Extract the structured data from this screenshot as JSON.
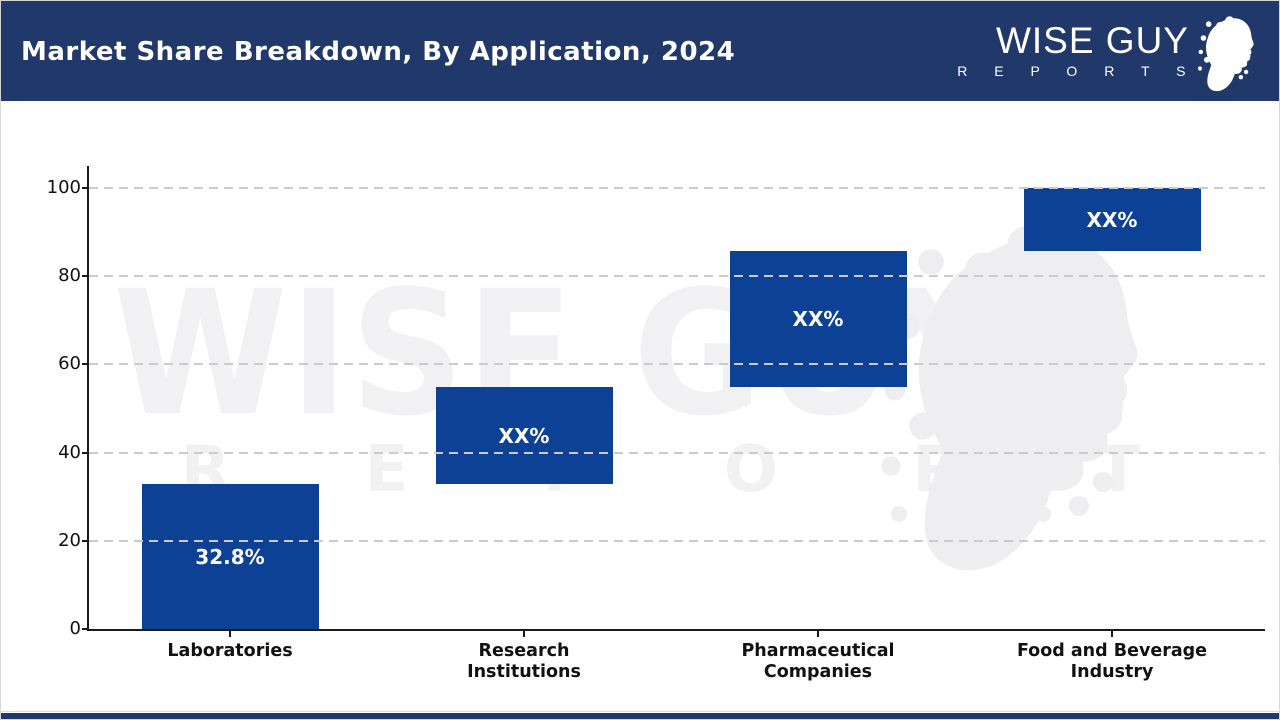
{
  "header": {
    "title": "Market Share Breakdown, By Application, 2024",
    "logo": {
      "line1": "WISE GUY",
      "line2": "R E P O R T S"
    }
  },
  "watermark": {
    "line1": "WISE GUY",
    "line2": "R E P O R T S"
  },
  "chart_data": {
    "type": "bar",
    "variant": "floating-waterfall",
    "title": "Market Share Breakdown, By Application, 2024",
    "xlabel": "",
    "ylabel": "",
    "ylim": [
      0,
      105
    ],
    "yticks": [
      0,
      20,
      40,
      60,
      80,
      100
    ],
    "grid": "horizontal-dashed-over-bars",
    "legend": "none",
    "bar_color": "#0c4195",
    "header_color": "#21386b",
    "gridline_color": "#cbcbcb",
    "categories": [
      "Laboratories",
      "Research Institutions",
      "Pharmaceutical Companies",
      "Food and Beverage Industry"
    ],
    "category_label_lines": [
      [
        "Laboratories"
      ],
      [
        "Research",
        "Institutions"
      ],
      [
        "Pharmaceutical",
        "Companies"
      ],
      [
        "Food and Beverage",
        "Industry"
      ]
    ],
    "segments": [
      {
        "category": "Laboratories",
        "start": 0,
        "end": 32.8,
        "label": "32.8%"
      },
      {
        "category": "Research Institutions",
        "start": 32.8,
        "end": 54.9,
        "label": "XX%"
      },
      {
        "category": "Pharmaceutical Companies",
        "start": 54.9,
        "end": 85.7,
        "label": "XX%"
      },
      {
        "category": "Food and Beverage Industry",
        "start": 85.7,
        "end": 100,
        "label": "XX%"
      }
    ]
  }
}
